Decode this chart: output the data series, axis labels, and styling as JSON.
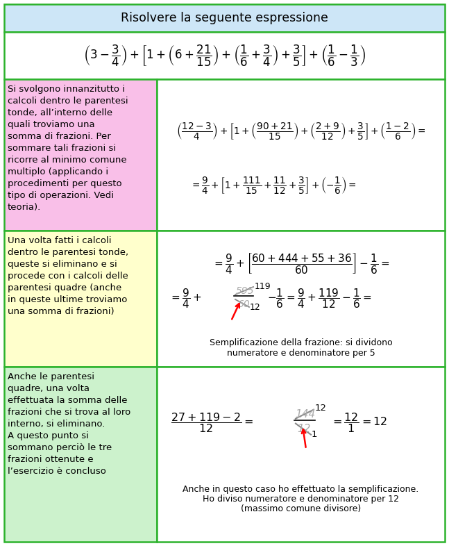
{
  "title": "Risolvere la seguente espressione",
  "title_bg": "#cde6f7",
  "border_color": "#2db32d",
  "row1_left_bg": "#f9bfe8",
  "row1_left_text": "Si svolgono innanzitutto i\ncalcoli dentro le parentesi\ntonde, all’interno delle\nquali troviamo una\nsomma di frazioni. Per\nsommare tali frazioni si\nricorre al minimo comune\nmultiplo (applicando i\nprocedimenti per questo\ntipo di operazioni. Vedi\nteoria).",
  "row2_left_bg": "#ffffcc",
  "row2_left_text": "Una volta fatti i calcoli\ndentro le parentesi tonde,\nqueste si eliminano e si\nprocede con i calcoli delle\nparentesi quadre (anche\nin queste ultime troviamo\nuna somma di frazioni)",
  "row3_left_bg": "#ccf2cc",
  "row3_left_text": "Anche le parentesi\nquadre, una volta\neffettuata la somma delle\nfrazioni che si trova al loro\ninterno, si eliminano.\nA questo punto si\nsommano perciò le tre\nfrazioni ottenute e\nl’esercizio è concluso",
  "row2_note": "Semplificazione della frazione: si dividono\nnumeratore e denominatore per 5",
  "row3_note1": "Anche in questo caso ho effettuato la semplificazione.",
  "row3_note2": "Ho diviso numeratore e denominatore per 12",
  "row3_note3": "(massimo comune divisore)"
}
